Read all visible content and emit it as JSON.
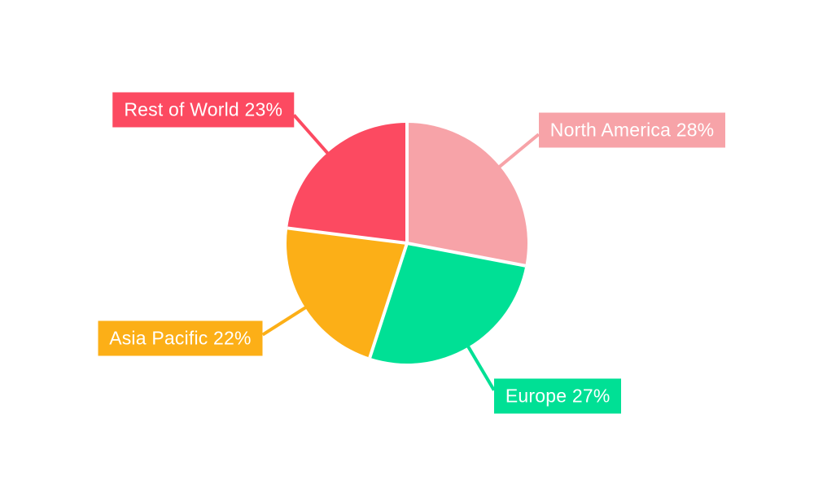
{
  "page": {
    "background_color": "#ffffff"
  },
  "chart_data": {
    "type": "pie",
    "title": "",
    "legend": "none",
    "labels_style": "callout-boxes",
    "start_angle_deg": 0,
    "direction": "clockwise",
    "total": 100,
    "separator_color": "#ffffff",
    "label_text_color": "#ffffff",
    "categories": [
      "North America",
      "Europe",
      "Asia Pacific",
      "Rest of World"
    ],
    "values": [
      28,
      27,
      22,
      23
    ],
    "slices": [
      {
        "label": "North America",
        "value": 28,
        "color": "#f7a3a8",
        "display_text": "North America 28%"
      },
      {
        "label": "Europe",
        "value": 27,
        "color": "#00e095",
        "display_text": "Europe 27%"
      },
      {
        "label": "Asia Pacific",
        "value": 22,
        "color": "#fcaf17",
        "display_text": "Asia Pacific 22%"
      },
      {
        "label": "Rest of World",
        "value": 23,
        "color": "#fc4a61",
        "display_text": "Rest of World 23%"
      }
    ]
  }
}
